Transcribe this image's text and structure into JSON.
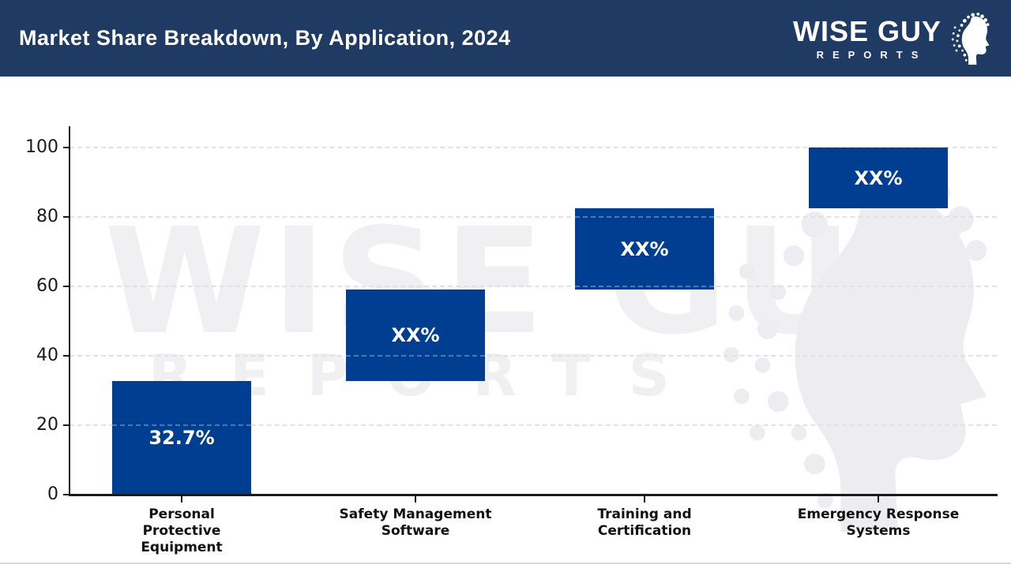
{
  "header": {
    "title": "Market Share Breakdown, By Application, 2024",
    "logo": {
      "brand": "WISE GUY",
      "subbrand": "REPORTS"
    }
  },
  "watermark": {
    "brand": "WISE GUY",
    "subbrand": "REPORTS"
  },
  "chart_data": {
    "type": "bar",
    "subtype": "waterfall",
    "title": "Market Share Breakdown, By Application, 2024",
    "categories": [
      "Personal\nProtective\nEquipment",
      "Safety Management\nSoftware",
      "Training and\nCertification",
      "Emergency Response\nSystems"
    ],
    "segments": [
      {
        "category": "Personal Protective Equipment",
        "start": 0,
        "end": 32.7,
        "label": "32.7%"
      },
      {
        "category": "Safety Management Software",
        "start": 32.7,
        "end": 59,
        "label": "XX%"
      },
      {
        "category": "Training and Certification",
        "start": 59,
        "end": 82.5,
        "label": "XX%"
      },
      {
        "category": "Emergency Response Systems",
        "start": 82.5,
        "end": 100,
        "label": "XX%"
      }
    ],
    "yticks": [
      0,
      20,
      40,
      60,
      80,
      100
    ],
    "ylim": [
      0,
      105
    ],
    "xlabel": "",
    "ylabel": "",
    "grid": "horizontal-dashed",
    "legend": "none",
    "colors": {
      "header_bg": "#1f3a63",
      "bar": "#003e92",
      "bar_label": "#ffffff",
      "grid_line": "#e2e2e6",
      "axis": "#1a1a1a",
      "watermark_text": "#f0f0f3",
      "watermark_head": "#ededf1"
    }
  }
}
